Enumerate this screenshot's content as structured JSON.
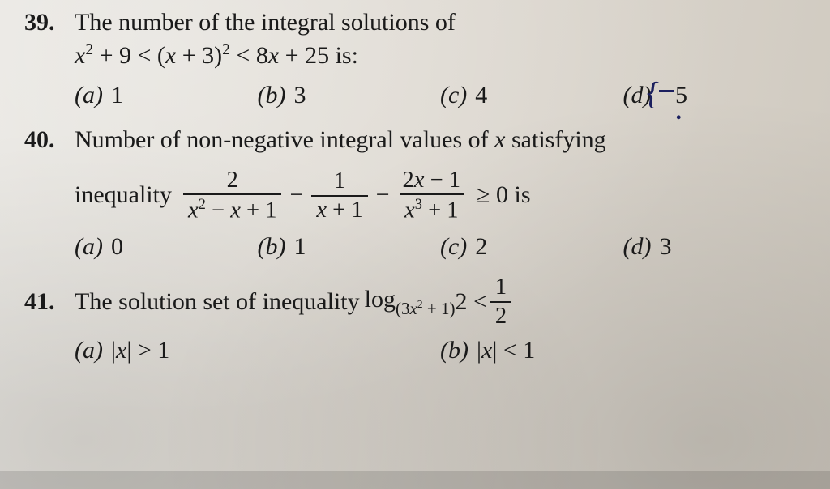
{
  "q39": {
    "number": "39.",
    "prompt_line1": "The number of the integral solutions of",
    "prompt_line2_html": "<span class='math'>x</span><sup>2</sup> + 9 &lt; (<span class='math'>x</span> + 3)<sup>2</sup> &lt; 8<span class='math'>x</span> + 25 is:",
    "opts": {
      "a_lbl": "(a)",
      "a_val": "1",
      "b_lbl": "(b)",
      "b_val": "3",
      "c_lbl": "(c)",
      "c_val": "4",
      "d_lbl": "(d)",
      "d_val": "5"
    },
    "hand_bracket": "}",
    "hand_dot": "."
  },
  "q40": {
    "number": "40.",
    "prompt_line1_html": "Number of non-negative integral values of <span class='math'>x</span> satisfying",
    "inequality_label": "inequality",
    "frac1_num": "2",
    "frac1_den_html": "<span class='math'>x</span><sup>2</sup> − <span class='math'>x</span> + 1",
    "minus1": "−",
    "frac2_num": "1",
    "frac2_den_html": "<span class='math'>x</span> + 1",
    "minus2": "−",
    "frac3_num_html": "2<span class='math'>x</span> − 1",
    "frac3_den_html": "<span class='math'>x</span><sup>3</sup> + 1",
    "tail": "≥ 0 is",
    "opts": {
      "a_lbl": "(a)",
      "a_val": "0",
      "b_lbl": "(b)",
      "b_val": "1",
      "c_lbl": "(c)",
      "c_val": "2",
      "d_lbl": "(d)",
      "d_val": "3"
    }
  },
  "q41": {
    "number": "41.",
    "prompt_prefix": "The solution set of inequality ",
    "log_text": "log",
    "log_sub_html": "(3<span class='math'>x</span><sup>2</sup> + 1)",
    "log_arg": " 2 < ",
    "rhs_num": "1",
    "rhs_den": "2",
    "opts": {
      "a_lbl": "(a)",
      "a_val_html": "|<span class='math'>x</span>| &gt; 1",
      "b_lbl": "(b)",
      "b_val_html": "|<span class='math'>x</span>| &lt; 1"
    }
  }
}
